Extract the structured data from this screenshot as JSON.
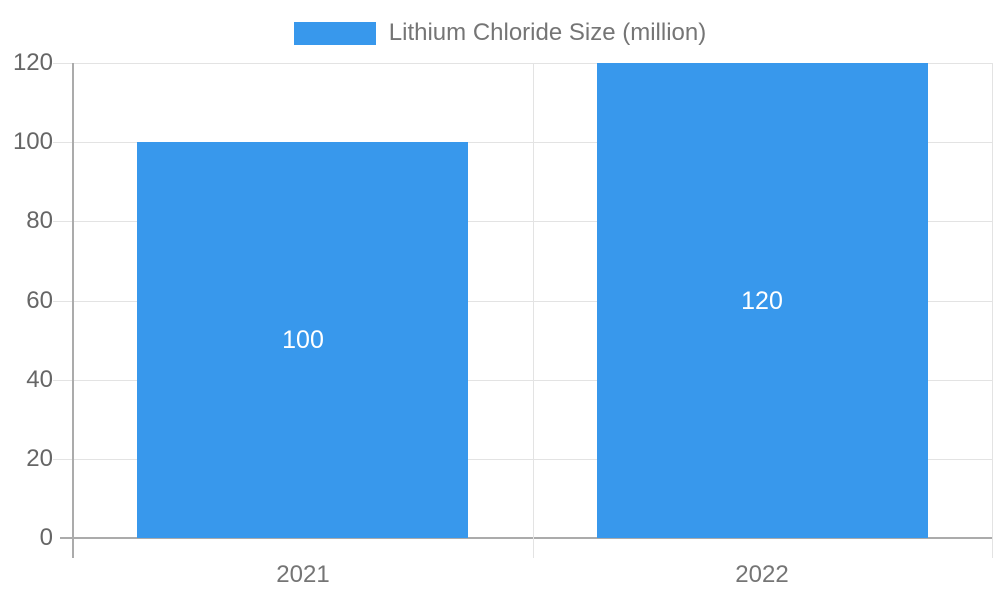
{
  "legend": {
    "label": "Lithium Chloride Size (million)",
    "swatch_color": "#3898EC"
  },
  "chart_data": {
    "type": "bar",
    "categories": [
      "2021",
      "2022"
    ],
    "series": [
      {
        "name": "Lithium Chloride Size (million)",
        "values": [
          100,
          120
        ]
      }
    ],
    "data_labels": [
      "100",
      "120"
    ],
    "title": "",
    "xlabel": "",
    "ylabel": "",
    "ylim": [
      0,
      120
    ],
    "yticks": [
      0,
      20,
      40,
      60,
      80,
      100,
      120
    ],
    "grid": true,
    "legend_position": "top-center",
    "colors": {
      "bar": "#3898EC",
      "bar_label": "#FFFFFF",
      "gridline": "#E3E3E3",
      "axis": "#ABABAB",
      "ytick_label": "#666666",
      "xtick_label": "#757575",
      "legend_label": "#757575"
    }
  }
}
